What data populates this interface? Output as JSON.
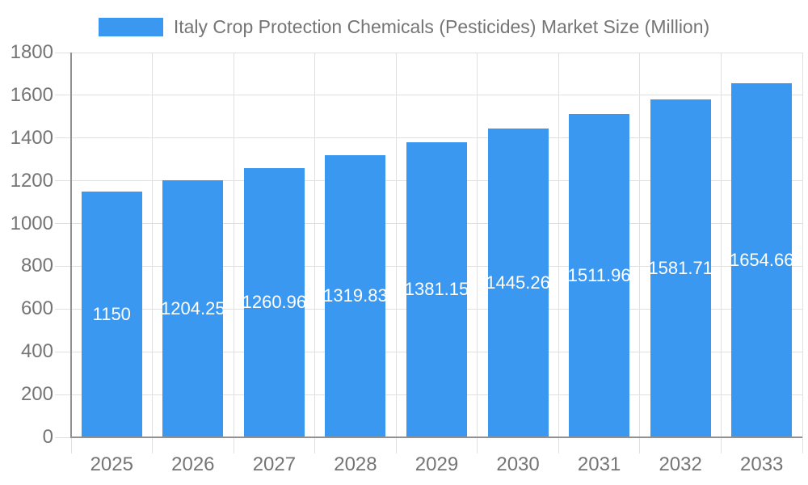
{
  "chart_data": {
    "type": "bar",
    "title": "Italy Crop Protection Chemicals (Pesticides) Market Size (Million)",
    "categories": [
      "2025",
      "2026",
      "2027",
      "2028",
      "2029",
      "2030",
      "2031",
      "2032",
      "2033"
    ],
    "values": [
      1150,
      1204.25,
      1260.96,
      1319.83,
      1381.15,
      1445.26,
      1511.96,
      1581.71,
      1654.66
    ],
    "bar_labels": [
      "1150",
      "1204.25",
      "1260.96",
      "1319.83",
      "1381.15",
      "1445.26",
      "1511.96",
      "1581.71",
      "1654.66"
    ],
    "xlabel": "",
    "ylabel": "",
    "ylim": [
      0,
      1800
    ],
    "yticks": [
      0,
      200,
      400,
      600,
      800,
      1000,
      1200,
      1400,
      1600,
      1800
    ],
    "grid": true,
    "legend_position": "top-center",
    "colors": {
      "bar": "#3B98F0",
      "axis_line": "#919191",
      "grid_line": "#e0e0e0",
      "tick_line": "#e0e0e0",
      "axis_text": "#757575",
      "bar_label_text": "#ffffff",
      "background": "#ffffff"
    }
  }
}
